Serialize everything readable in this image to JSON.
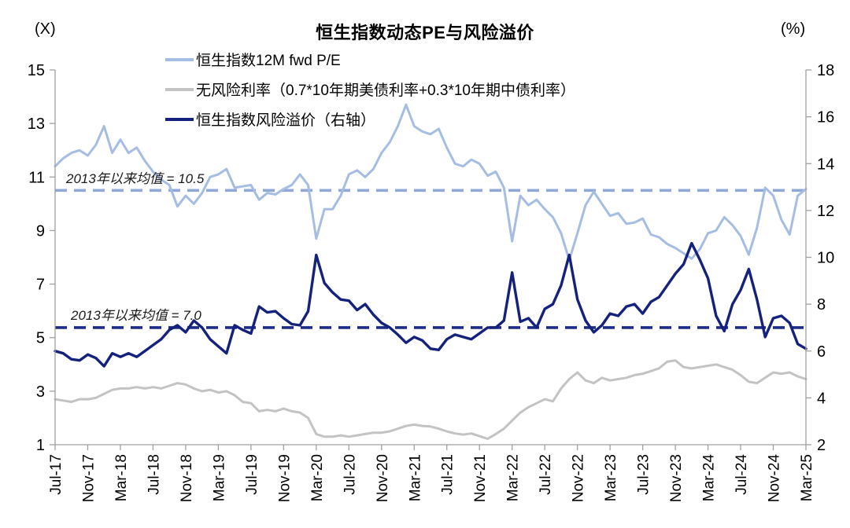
{
  "page": {
    "title": "恒生指数动态PE与风险溢价",
    "left_axis_unit": "(X)",
    "right_axis_unit": "(%)"
  },
  "colors": {
    "pe_line": "#A5BDE3",
    "riskfree_line": "#C3C3C3",
    "erp_line": "#14217D",
    "pe_mean_dash": "#8FA8D6",
    "erp_mean_dash": "#1B2C8A",
    "axis": "#A0A0A0",
    "text": "#000000"
  },
  "chart_data": {
    "type": "line",
    "title": "恒生指数动态PE与风险溢价",
    "grid": false,
    "legend_position": "top-left-inside",
    "x": [
      "Jul-17",
      "Aug-17",
      "Sep-17",
      "Oct-17",
      "Nov-17",
      "Dec-17",
      "Jan-18",
      "Feb-18",
      "Mar-18",
      "Apr-18",
      "May-18",
      "Jun-18",
      "Jul-18",
      "Aug-18",
      "Sep-18",
      "Oct-18",
      "Nov-18",
      "Dec-18",
      "Jan-19",
      "Feb-19",
      "Mar-19",
      "Apr-19",
      "May-19",
      "Jun-19",
      "Jul-19",
      "Aug-19",
      "Sep-19",
      "Oct-19",
      "Nov-19",
      "Dec-19",
      "Jan-20",
      "Feb-20",
      "Mar-20",
      "Apr-20",
      "May-20",
      "Jun-20",
      "Jul-20",
      "Aug-20",
      "Sep-20",
      "Oct-20",
      "Nov-20",
      "Dec-20",
      "Jan-21",
      "Feb-21",
      "Mar-21",
      "Apr-21",
      "May-21",
      "Jun-21",
      "Jul-21",
      "Aug-21",
      "Sep-21",
      "Oct-21",
      "Nov-21",
      "Dec-21",
      "Jan-22",
      "Feb-22",
      "Mar-22",
      "Apr-22",
      "May-22",
      "Jun-22",
      "Jul-22",
      "Aug-22",
      "Sep-22",
      "Oct-22",
      "Nov-22",
      "Dec-22",
      "Jan-23",
      "Feb-23",
      "Mar-23",
      "Apr-23",
      "May-23",
      "Jun-23",
      "Jul-23",
      "Aug-23",
      "Sep-23",
      "Oct-23",
      "Nov-23",
      "Dec-23",
      "Jan-24",
      "Feb-24",
      "Mar-24",
      "Apr-24",
      "May-24",
      "Jun-24",
      "Jul-24",
      "Aug-24",
      "Sep-24",
      "Oct-24",
      "Nov-24",
      "Dec-24",
      "Jan-25",
      "Feb-25",
      "Mar-25"
    ],
    "x_tick_every": 4,
    "left_axis": {
      "unit": "(X)",
      "min": 1,
      "max": 15,
      "ticks": [
        15,
        13,
        11,
        9,
        7,
        5,
        3,
        1
      ]
    },
    "right_axis": {
      "unit": "(%)",
      "min": 2,
      "max": 18,
      "ticks": [
        18,
        16,
        14,
        12,
        10,
        8,
        6,
        4,
        2
      ]
    },
    "series": [
      {
        "name": "恒生指数12M fwd P/E",
        "axis": "left",
        "color": "#A5BDE3",
        "width": 3,
        "values": [
          11.4,
          11.7,
          11.9,
          12.0,
          11.8,
          12.2,
          12.9,
          11.9,
          12.4,
          11.9,
          12.1,
          11.6,
          11.2,
          10.9,
          10.7,
          9.9,
          10.3,
          10.0,
          10.4,
          11.0,
          11.1,
          11.3,
          10.6,
          10.65,
          10.7,
          10.15,
          10.4,
          10.35,
          10.55,
          10.7,
          11.1,
          10.7,
          8.7,
          9.8,
          9.8,
          10.3,
          11.1,
          11.25,
          11.0,
          11.3,
          11.9,
          12.3,
          12.9,
          13.7,
          12.9,
          12.7,
          12.6,
          12.8,
          12.1,
          11.5,
          11.4,
          11.65,
          11.5,
          11.05,
          11.2,
          10.6,
          8.6,
          10.3,
          9.95,
          10.15,
          9.8,
          9.5,
          8.9,
          7.9,
          8.9,
          9.95,
          10.45,
          10.0,
          9.55,
          9.65,
          9.25,
          9.3,
          9.45,
          8.85,
          8.75,
          8.5,
          8.35,
          8.15,
          7.95,
          8.3,
          8.9,
          9.0,
          9.5,
          9.2,
          8.8,
          8.1,
          9.1,
          10.6,
          10.3,
          9.4,
          8.85,
          10.3,
          10.55
        ]
      },
      {
        "name": "无风险利率（0.7*10年期美债利率+0.3*10年期中债利率）",
        "axis": "left",
        "color": "#C3C3C3",
        "width": 3,
        "values": [
          2.7,
          2.65,
          2.6,
          2.7,
          2.7,
          2.75,
          2.9,
          3.05,
          3.1,
          3.1,
          3.15,
          3.1,
          3.15,
          3.1,
          3.2,
          3.3,
          3.25,
          3.1,
          3.0,
          3.05,
          2.95,
          3.0,
          2.85,
          2.6,
          2.55,
          2.25,
          2.3,
          2.25,
          2.35,
          2.25,
          2.2,
          2.0,
          1.4,
          1.3,
          1.3,
          1.35,
          1.3,
          1.35,
          1.4,
          1.45,
          1.45,
          1.5,
          1.6,
          1.7,
          1.75,
          1.7,
          1.68,
          1.6,
          1.5,
          1.42,
          1.38,
          1.42,
          1.32,
          1.22,
          1.4,
          1.6,
          1.9,
          2.2,
          2.4,
          2.55,
          2.7,
          2.62,
          3.1,
          3.45,
          3.7,
          3.4,
          3.3,
          3.5,
          3.4,
          3.45,
          3.5,
          3.6,
          3.65,
          3.75,
          3.85,
          4.1,
          4.15,
          3.9,
          3.85,
          3.9,
          3.95,
          4.0,
          3.9,
          3.8,
          3.6,
          3.35,
          3.3,
          3.5,
          3.7,
          3.65,
          3.7,
          3.55,
          3.45
        ]
      },
      {
        "name": "恒生指数风险溢价（右轴）",
        "axis": "right",
        "color": "#14217D",
        "width": 3.4,
        "values": [
          6.0,
          5.9,
          5.65,
          5.6,
          5.85,
          5.7,
          5.35,
          5.9,
          5.75,
          5.9,
          5.75,
          6.0,
          6.25,
          6.5,
          6.9,
          7.1,
          6.8,
          7.3,
          7.0,
          6.5,
          6.2,
          5.9,
          7.1,
          6.9,
          6.75,
          7.9,
          7.65,
          7.7,
          7.4,
          7.15,
          7.1,
          7.7,
          10.1,
          8.9,
          8.5,
          8.2,
          8.15,
          7.75,
          8.0,
          7.55,
          7.2,
          7.0,
          6.7,
          6.35,
          6.6,
          6.45,
          6.1,
          6.05,
          6.5,
          6.7,
          6.6,
          6.5,
          6.75,
          7.0,
          7.0,
          7.3,
          9.35,
          7.25,
          7.4,
          7.0,
          7.8,
          8.0,
          8.8,
          10.1,
          8.2,
          7.3,
          6.8,
          7.1,
          7.6,
          7.5,
          7.9,
          8.0,
          7.6,
          8.1,
          8.3,
          8.8,
          9.3,
          9.7,
          10.6,
          9.9,
          9.1,
          7.5,
          6.85,
          8.0,
          8.6,
          9.5,
          8.2,
          6.6,
          7.4,
          7.5,
          7.2,
          6.3,
          6.1
        ]
      }
    ],
    "mean_lines": [
      {
        "label": "2013年以来均值 = 10.5",
        "value": 10.5,
        "axis": "left",
        "color": "#8FA8D6"
      },
      {
        "label": "2013年以来均值 = 7.0",
        "value": 7.0,
        "axis": "right",
        "color": "#1B2C8A"
      }
    ]
  }
}
